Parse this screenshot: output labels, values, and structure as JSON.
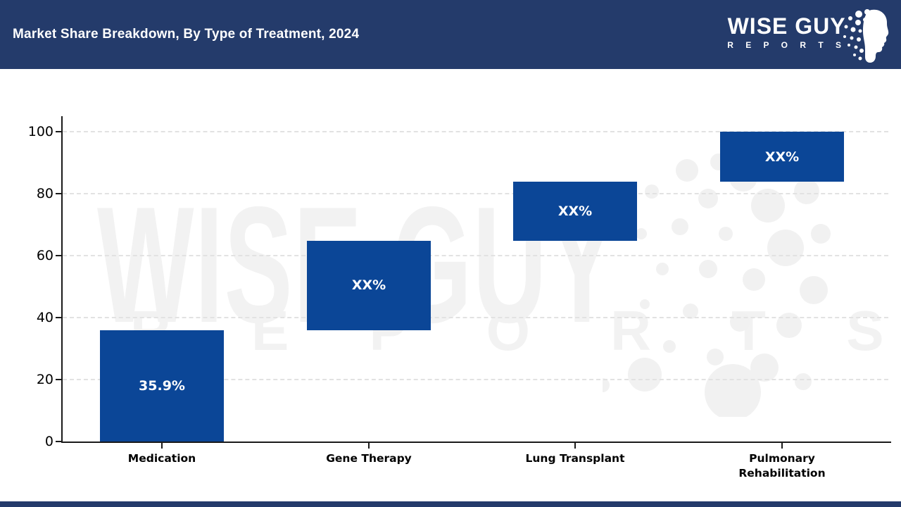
{
  "header": {
    "title": "Market Share Breakdown, By Type of Treatment, 2024",
    "logo": {
      "line1": "WISE GUY",
      "line2": "R E P O R T S"
    }
  },
  "watermark": {
    "line1": "WISE GUY",
    "line2": "R E P O R T S"
  },
  "chart_data": {
    "type": "bar",
    "subtype": "waterfall",
    "title": "Market Share Breakdown, By Type of Treatment, 2024",
    "categories": [
      "Medication",
      "Gene Therapy",
      "Lung Transplant",
      "Pulmonary Rehabilitation"
    ],
    "category_label_lines": [
      [
        "Medication"
      ],
      [
        "Gene Therapy"
      ],
      [
        "Lung Transplant"
      ],
      [
        "Pulmonary",
        "Rehabilitation"
      ]
    ],
    "series": [
      {
        "name": "Market share (%)",
        "segments": [
          {
            "category": "Medication",
            "start": 0,
            "end": 35.9,
            "label": "35.9%"
          },
          {
            "category": "Gene Therapy",
            "start": 35.9,
            "end": 64.8,
            "label": "XX%"
          },
          {
            "category": "Lung Transplant",
            "start": 64.8,
            "end": 83.8,
            "label": "XX%"
          },
          {
            "category": "Pulmonary Rehabilitation",
            "start": 83.8,
            "end": 100,
            "label": "XX%"
          }
        ]
      }
    ],
    "xlabel": "",
    "ylabel": "",
    "ylim": [
      0,
      100
    ],
    "yticks": [
      0,
      20,
      40,
      60,
      80,
      100
    ],
    "grid": "horizontal-dashed",
    "legend": "none",
    "colors": {
      "bar": "#0b4697",
      "header_bg": "#243b6b",
      "grid": "#e2e2e2",
      "axis": "#1a1a1a",
      "bar_label_text": "#ffffff",
      "watermark": "#f2f2f2"
    }
  }
}
